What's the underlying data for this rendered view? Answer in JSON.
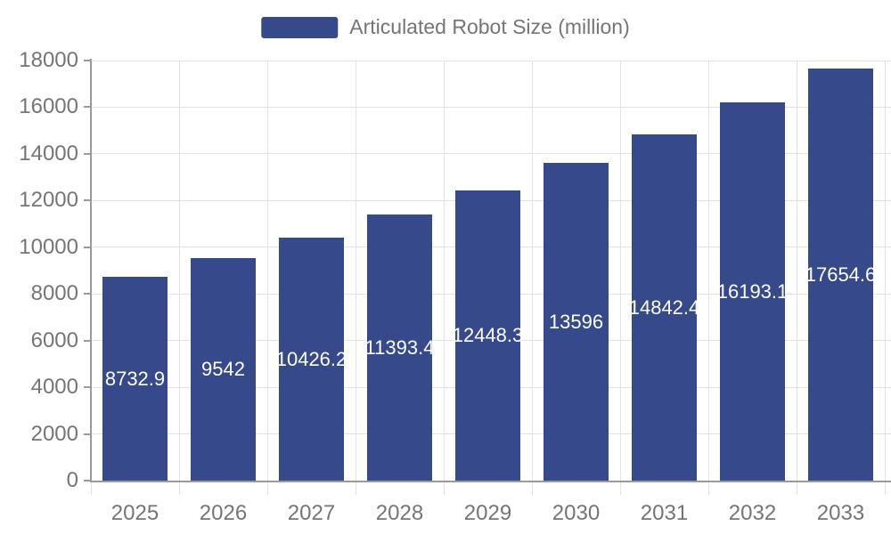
{
  "chart_data": {
    "type": "bar",
    "title": "Articulated Robot Size (million)",
    "categories": [
      "2025",
      "2026",
      "2027",
      "2028",
      "2029",
      "2030",
      "2031",
      "2032",
      "2033"
    ],
    "series": [
      {
        "name": "Articulated Robot Size (million)",
        "values": [
          8732.9,
          9542,
          10426.2,
          11393.4,
          12448.3,
          13596,
          14842.4,
          16193.1,
          17654.6
        ],
        "color": "#36498A"
      }
    ],
    "bar_value_labels": [
      "8732.9",
      "9542",
      "10426.2",
      "11393.4",
      "12448.3",
      "13596",
      "14842.4",
      "16193.1",
      "17654.6"
    ],
    "y_tick_labels": [
      "0",
      "2000",
      "4000",
      "6000",
      "8000",
      "10000",
      "12000",
      "14000",
      "16000",
      "18000"
    ],
    "ylim": [
      0,
      18000
    ],
    "grid": true,
    "legend_position": "top-center",
    "colors": {
      "bar_fill": "#36498A",
      "bar_label_text": "#FFFFFF",
      "axis_tick_text": "#757575",
      "legend_text": "#73757A",
      "gridline": "#E3E3E3",
      "axis_line": "#9A9A9A",
      "background": "#FFFFFF"
    }
  }
}
